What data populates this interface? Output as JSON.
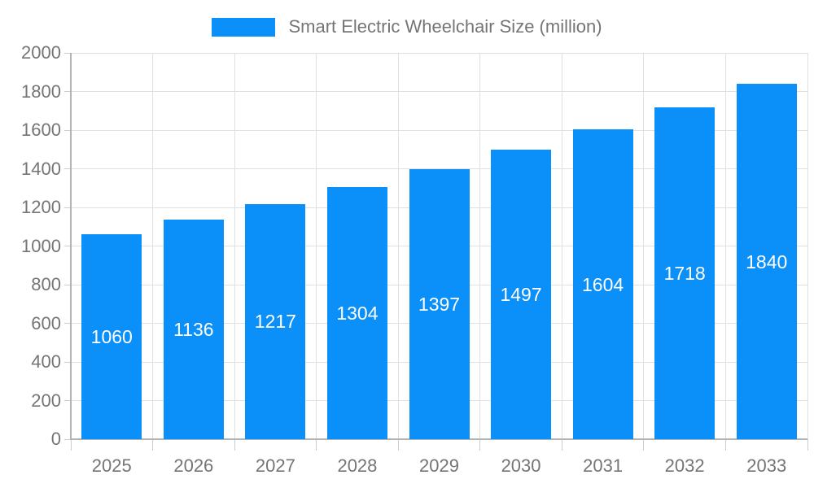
{
  "chart_data": {
    "type": "bar",
    "title": "Smart Electric Wheelchair Size (million)",
    "categories": [
      "2025",
      "2026",
      "2027",
      "2028",
      "2029",
      "2030",
      "2031",
      "2032",
      "2033"
    ],
    "values": [
      1060,
      1136,
      1217,
      1304,
      1397,
      1497,
      1604,
      1718,
      1840
    ],
    "xlabel": "",
    "ylabel": "",
    "ylim": [
      0,
      2000
    ],
    "ytick_step": 200,
    "yticks": [
      0,
      200,
      400,
      600,
      800,
      1000,
      1200,
      1400,
      1600,
      1800,
      2000
    ],
    "grid": true,
    "legend_position": "top",
    "bar_color": "#0a90f8",
    "bar_label_color": "#ffffff",
    "axis_text_color": "#757575",
    "gridline_color": "#e0e0e0",
    "axis_line_color": "#b3b3b3",
    "tick_color": "#cccccc",
    "background_color": "#ffffff"
  }
}
